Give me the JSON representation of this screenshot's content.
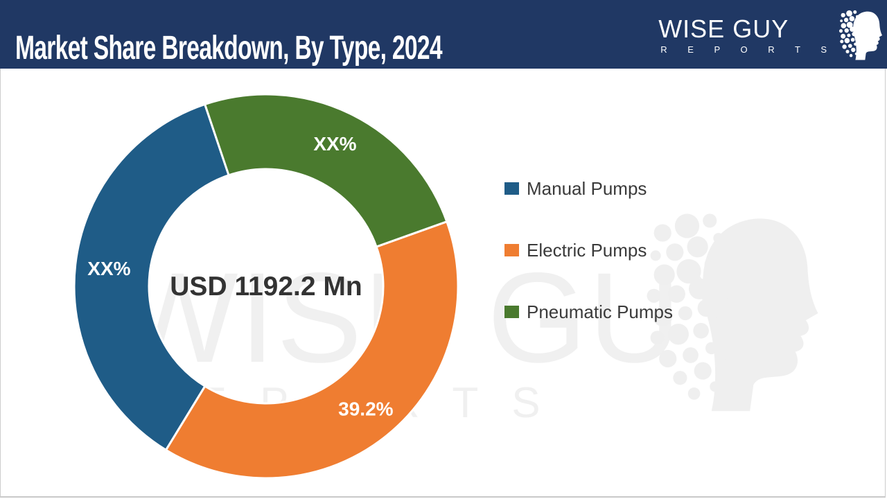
{
  "header": {
    "title": "Market Share Breakdown, By Type, 2024",
    "logo": {
      "brand": "WISE GUY",
      "sub": "R E P O R T S"
    }
  },
  "watermark": {
    "brand": "WISE GUY",
    "sub": "REPORTS"
  },
  "chart_data": {
    "type": "pie",
    "subtype": "donut",
    "title": "Market Share Breakdown, By Type, 2024",
    "center_label": "USD 1192.2 Mn",
    "start_angle_deg": 108.6,
    "direction": "counterclockwise",
    "inner_radius_ratio": 0.61,
    "legend_position": "right",
    "slices": [
      {
        "label": "Manual Pumps",
        "value_pct": 36.1,
        "display_label": "XX%",
        "color": "#1F5C87"
      },
      {
        "label": "Electric Pumps",
        "value_pct": 39.2,
        "display_label": "39.2%",
        "color": "#EF7D31"
      },
      {
        "label": "Pneumatic Pumps",
        "value_pct": 24.7,
        "display_label": "XX%",
        "color": "#4A7A2E"
      }
    ]
  },
  "colors": {
    "header_bg": "#203864",
    "watermark": "#f0f0f0",
    "center_text": "#333333",
    "legend_text": "#3a3a3a",
    "separator": "#ffffff"
  }
}
